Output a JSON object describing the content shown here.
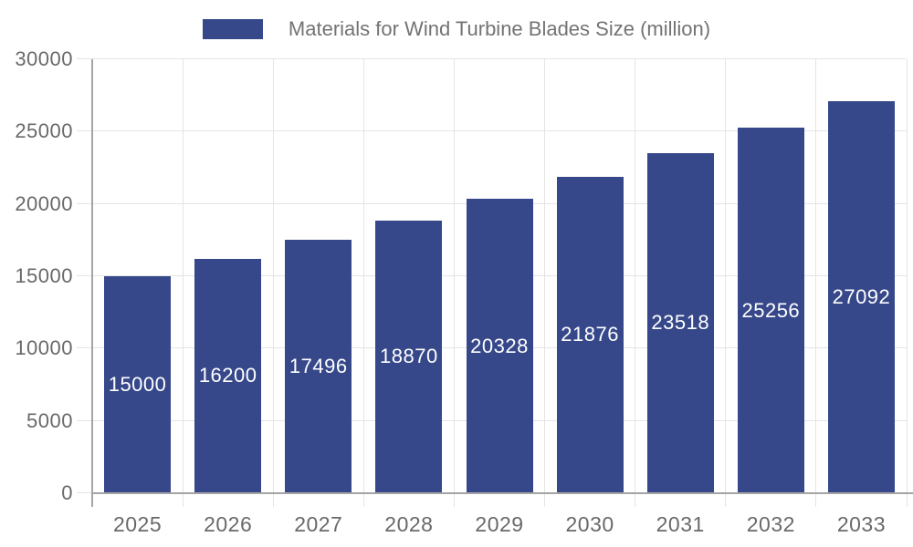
{
  "chart_data": {
    "type": "bar",
    "title": "Materials for Wind Turbine Blades Size (million)",
    "legend": "Materials for Wind Turbine Blades Size (million)",
    "legend_position": "top",
    "categories": [
      "2025",
      "2026",
      "2027",
      "2028",
      "2029",
      "2030",
      "2031",
      "2032",
      "2033"
    ],
    "values": [
      15000,
      16200,
      17496,
      18870,
      20328,
      21876,
      23518,
      25256,
      27092
    ],
    "xlabel": "",
    "ylabel": "",
    "ylim": [
      0,
      30000
    ],
    "yticks": [
      0,
      5000,
      10000,
      15000,
      20000,
      25000,
      30000
    ],
    "grid": true,
    "colors": {
      "bar": "#36488A",
      "bar_label": "#ffffff",
      "grid": "#e4e4e4",
      "axis_line": "#a5a5a5",
      "axis_text": "#696969",
      "legend_text": "#737373",
      "background": "#ffffff"
    }
  }
}
